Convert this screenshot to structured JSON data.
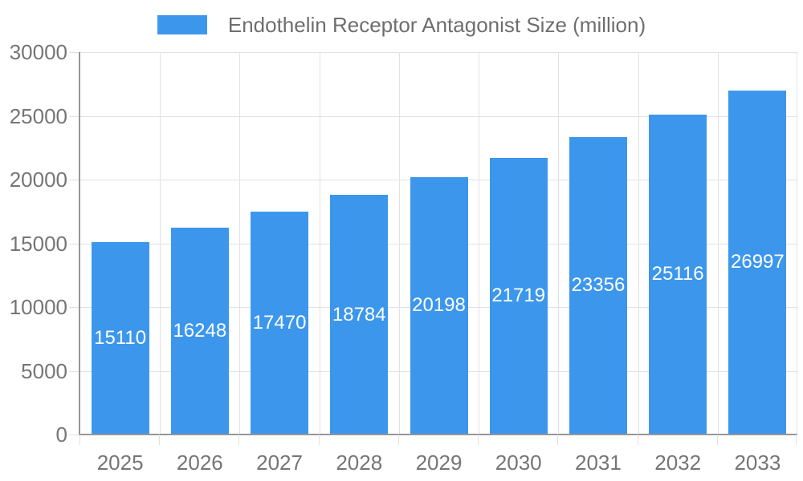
{
  "chart_data": {
    "type": "bar",
    "title": "Endothelin Receptor Antagonist Size (million)",
    "series_name": "Endothelin Receptor Antagonist Size (million)",
    "categories": [
      "2025",
      "2026",
      "2027",
      "2028",
      "2029",
      "2030",
      "2031",
      "2032",
      "2033"
    ],
    "values": [
      15110,
      16248,
      17470,
      18784,
      20198,
      21719,
      23356,
      25116,
      26997
    ],
    "xlabel": "",
    "ylabel": "",
    "ylim": [
      0,
      30000
    ],
    "ytick_step": 5000,
    "ytick_labels": [
      "0",
      "5000",
      "10000",
      "15000",
      "20000",
      "25000",
      "30000"
    ],
    "grid": true,
    "legend_position": "top-center",
    "bar_label_position": "inside-center",
    "colors": {
      "bar": "#3C97EC",
      "axis_line": "#969696",
      "gridline": "#E2E2E2",
      "tick": "#E0E0E0",
      "axis_text": "#757575",
      "legend_text": "#6E6E6E",
      "bar_label_text": "#FFFFFF",
      "background": "#FFFFFF"
    }
  },
  "legend": {
    "label": "Endothelin Receptor Antagonist Size (million)"
  }
}
